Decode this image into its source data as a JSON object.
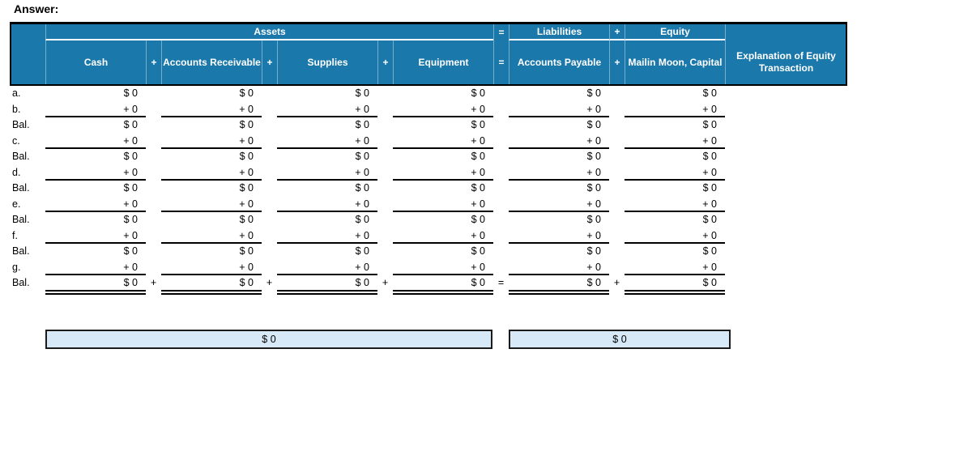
{
  "answer_label": "Answer:",
  "colors": {
    "header_bg": "#1b78ab",
    "header_text": "#ffffff",
    "box_bg": "#d7e9f6",
    "box_border": "#1b1b1b",
    "rule_line": "#000000"
  },
  "table": {
    "header": {
      "assets": "Assets",
      "liabilities": "Liabilities",
      "equity": "Equity",
      "equals_sign": "=",
      "plus_sign": "+",
      "columns": {
        "cash": "Cash",
        "accounts_receivable": "Accounts Receivable",
        "supplies": "Supplies",
        "equipment": "Equipment",
        "accounts_payable": "Accounts Payable",
        "capital": "Mailin Moon, Capital",
        "explanation": "Explanation of Equity Transaction"
      }
    },
    "rows": [
      {
        "label": "a.",
        "values": [
          "$ 0",
          "$ 0",
          "$ 0",
          "$ 0",
          "$ 0",
          "$ 0"
        ],
        "underline": false,
        "double_underline": false,
        "ops": null
      },
      {
        "label": "b.",
        "values": [
          "+ 0",
          "+ 0",
          "+ 0",
          "+ 0",
          "+ 0",
          "+ 0"
        ],
        "underline": true,
        "double_underline": false,
        "ops": null
      },
      {
        "label": "Bal.",
        "values": [
          "$ 0",
          "$ 0",
          "$ 0",
          "$ 0",
          "$ 0",
          "$ 0"
        ],
        "underline": false,
        "double_underline": false,
        "ops": null
      },
      {
        "label": "c.",
        "values": [
          "+ 0",
          "+ 0",
          "+ 0",
          "+ 0",
          "+ 0",
          "+ 0"
        ],
        "underline": true,
        "double_underline": false,
        "ops": null
      },
      {
        "label": "Bal.",
        "values": [
          "$ 0",
          "$ 0",
          "$ 0",
          "$ 0",
          "$ 0",
          "$ 0"
        ],
        "underline": false,
        "double_underline": false,
        "ops": null
      },
      {
        "label": "d.",
        "values": [
          "+ 0",
          "+ 0",
          "+ 0",
          "+ 0",
          "+ 0",
          "+ 0"
        ],
        "underline": true,
        "double_underline": false,
        "ops": null
      },
      {
        "label": "Bal.",
        "values": [
          "$ 0",
          "$ 0",
          "$ 0",
          "$ 0",
          "$ 0",
          "$ 0"
        ],
        "underline": false,
        "double_underline": false,
        "ops": null
      },
      {
        "label": "e.",
        "values": [
          "+ 0",
          "+ 0",
          "+ 0",
          "+ 0",
          "+ 0",
          "+ 0"
        ],
        "underline": true,
        "double_underline": false,
        "ops": null
      },
      {
        "label": "Bal.",
        "values": [
          "$ 0",
          "$ 0",
          "$ 0",
          "$ 0",
          "$ 0",
          "$ 0"
        ],
        "underline": false,
        "double_underline": false,
        "ops": null
      },
      {
        "label": "f.",
        "values": [
          "+ 0",
          "+ 0",
          "+ 0",
          "+ 0",
          "+ 0",
          "+ 0"
        ],
        "underline": true,
        "double_underline": false,
        "ops": null
      },
      {
        "label": "Bal.",
        "values": [
          "$ 0",
          "$ 0",
          "$ 0",
          "$ 0",
          "$ 0",
          "$ 0"
        ],
        "underline": false,
        "double_underline": false,
        "ops": null
      },
      {
        "label": "g.",
        "values": [
          "+ 0",
          "+ 0",
          "+ 0",
          "+ 0",
          "+ 0",
          "+ 0"
        ],
        "underline": true,
        "double_underline": false,
        "ops": null
      },
      {
        "label": "Bal.",
        "values": [
          "$ 0",
          "$ 0",
          "$ 0",
          "$ 0",
          "$ 0",
          "$ 0"
        ],
        "underline": false,
        "double_underline": true,
        "ops": [
          "+",
          "+",
          "+",
          "=",
          "+"
        ]
      }
    ]
  },
  "summary_boxes": {
    "assets_total": "$ 0",
    "liabilities_equity_total": "$ 0"
  }
}
